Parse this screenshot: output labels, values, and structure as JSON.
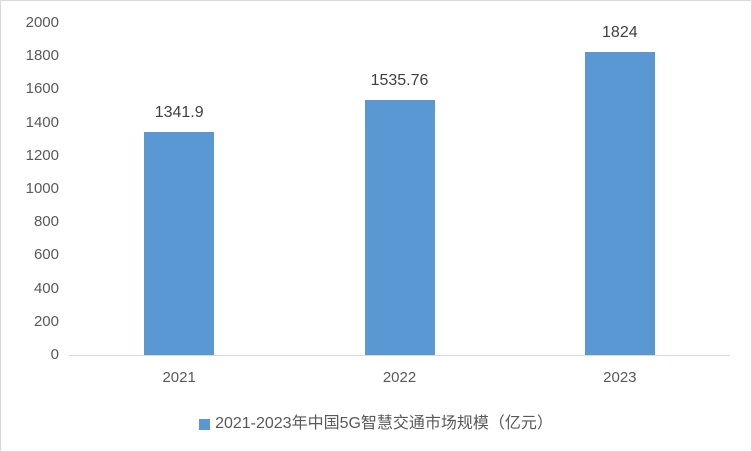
{
  "chart": {
    "background": "#ffffff",
    "border_color": "#d9d9d9",
    "bar_color": "#5998d3",
    "axis_line_color": "#d9d9d9",
    "tick_label_color": "#595959",
    "data_label_color": "#404040",
    "legend_text_color": "#595959"
  },
  "chart_data": {
    "type": "bar",
    "categories": [
      "2021",
      "2022",
      "2023"
    ],
    "values": [
      1341.9,
      1535.76,
      1824
    ],
    "data_labels": [
      "1341.9",
      "1535.76",
      "1824"
    ],
    "title": "",
    "xlabel": "",
    "ylabel": "",
    "ylim": [
      0,
      2000
    ],
    "ytick_step": 200,
    "grid": false,
    "legend_position": "bottom",
    "legend_label": "2021-2023年中国5G智慧交通市场规模（亿元）"
  }
}
